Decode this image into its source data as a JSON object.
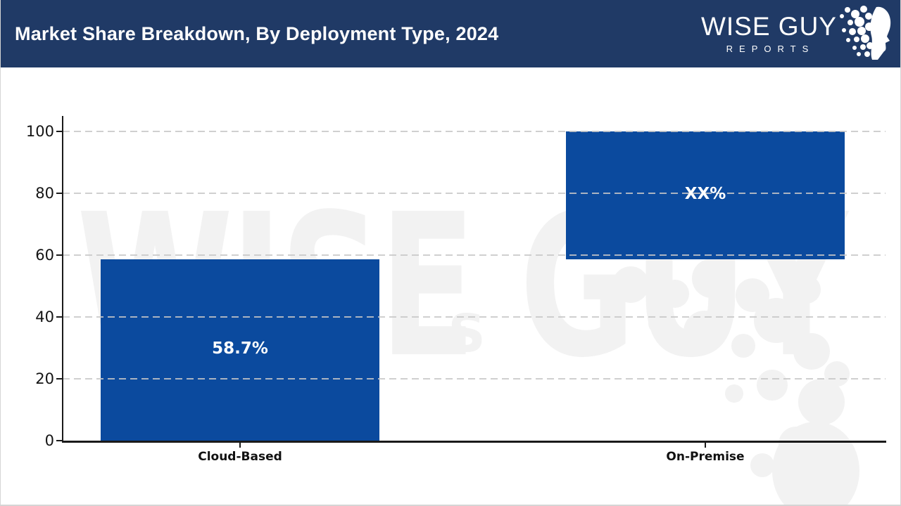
{
  "page": {
    "background": "#ffffff",
    "border_color": "#d5d5d5"
  },
  "header": {
    "background": "#203a66",
    "title": "Market Share Breakdown, By Deployment Type, 2024",
    "logo": {
      "wordmark": "WISE GUY",
      "subtext": "REPORTS"
    }
  },
  "watermark": {
    "wordmark": "WISE GUY",
    "subtext": "RTS",
    "color": "#f2f2f2"
  },
  "chart_data": {
    "type": "bar",
    "title": "Market Share Breakdown, By Deployment Type, 2024",
    "categories": [
      "Cloud-Based",
      "On-Premise"
    ],
    "series": [
      {
        "name": "Cloud-Based",
        "span": [
          0,
          58.7
        ],
        "value": 58.7,
        "data_label": "58.7%"
      },
      {
        "name": "On-Premise",
        "span": [
          58.7,
          100
        ],
        "value": 41.3,
        "data_label": "XX%"
      }
    ],
    "xlabel": "",
    "ylabel": "",
    "ylim": [
      0,
      100
    ],
    "yticks": [
      0,
      20,
      40,
      60,
      80,
      100
    ],
    "grid": {
      "axis": "y",
      "style": "dashed",
      "color": "#cccccc"
    },
    "legend": false,
    "bar_color": "#0b4a9e",
    "data_label_color": "#ffffff",
    "axis_color": "#1a1a1a"
  }
}
